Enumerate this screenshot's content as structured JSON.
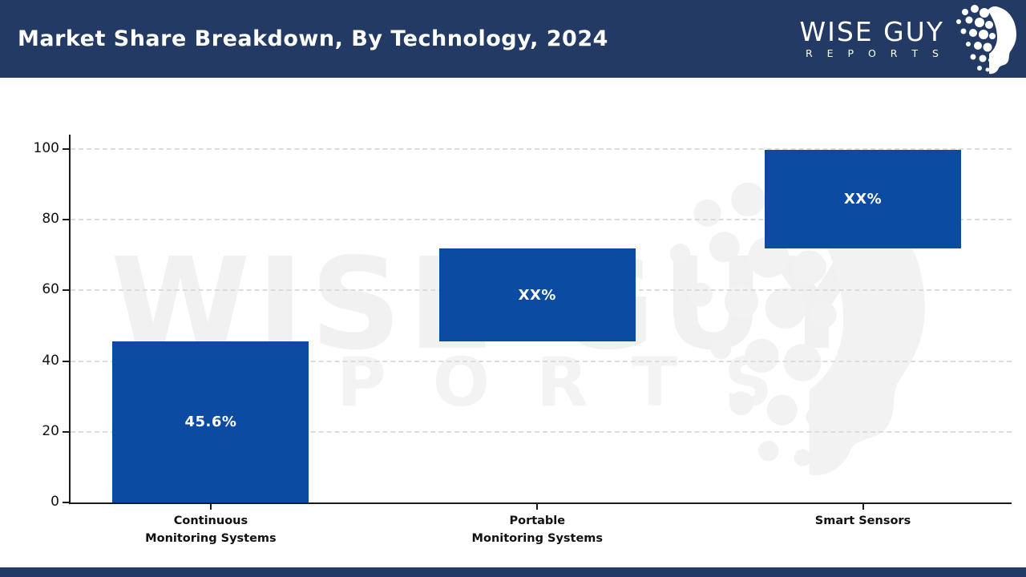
{
  "header": {
    "title": "Market Share Breakdown, By Technology, 2024",
    "background_color": "#233a64",
    "logo": {
      "line1": "WISE GUY",
      "line2": "R E P O R T S",
      "face_icon": "dotted-head-profile"
    }
  },
  "watermark": {
    "line1": "WISE GUY",
    "line2": "REPORTS",
    "face_icon": "dotted-head-profile",
    "color": "#f1f1f1"
  },
  "chart_data": {
    "type": "bar",
    "subtype": "floating-segment-bars (cumulative market share)",
    "title": "Market Share Breakdown, By Technology, 2024",
    "xlabel": "",
    "ylabel": "",
    "categories": [
      [
        "Continuous",
        "Monitoring Systems"
      ],
      [
        "Portable",
        "Monitoring Systems"
      ],
      [
        "Smart Sensors"
      ]
    ],
    "segments": [
      {
        "start": 0,
        "end": 45.6,
        "label": "45.6%"
      },
      {
        "start": 45.6,
        "end": 71.8,
        "label": "XX%"
      },
      {
        "start": 71.8,
        "end": 99.8,
        "label": "XX%"
      }
    ],
    "yticks": [
      0,
      20,
      40,
      60,
      80,
      100
    ],
    "ylim": [
      0,
      104
    ],
    "grid": "horizontal-dashed",
    "legend": "none",
    "bar_color": "#0c4ba2",
    "bar_label_color": "#ffffff",
    "axis_color": "#1a1a1a"
  }
}
